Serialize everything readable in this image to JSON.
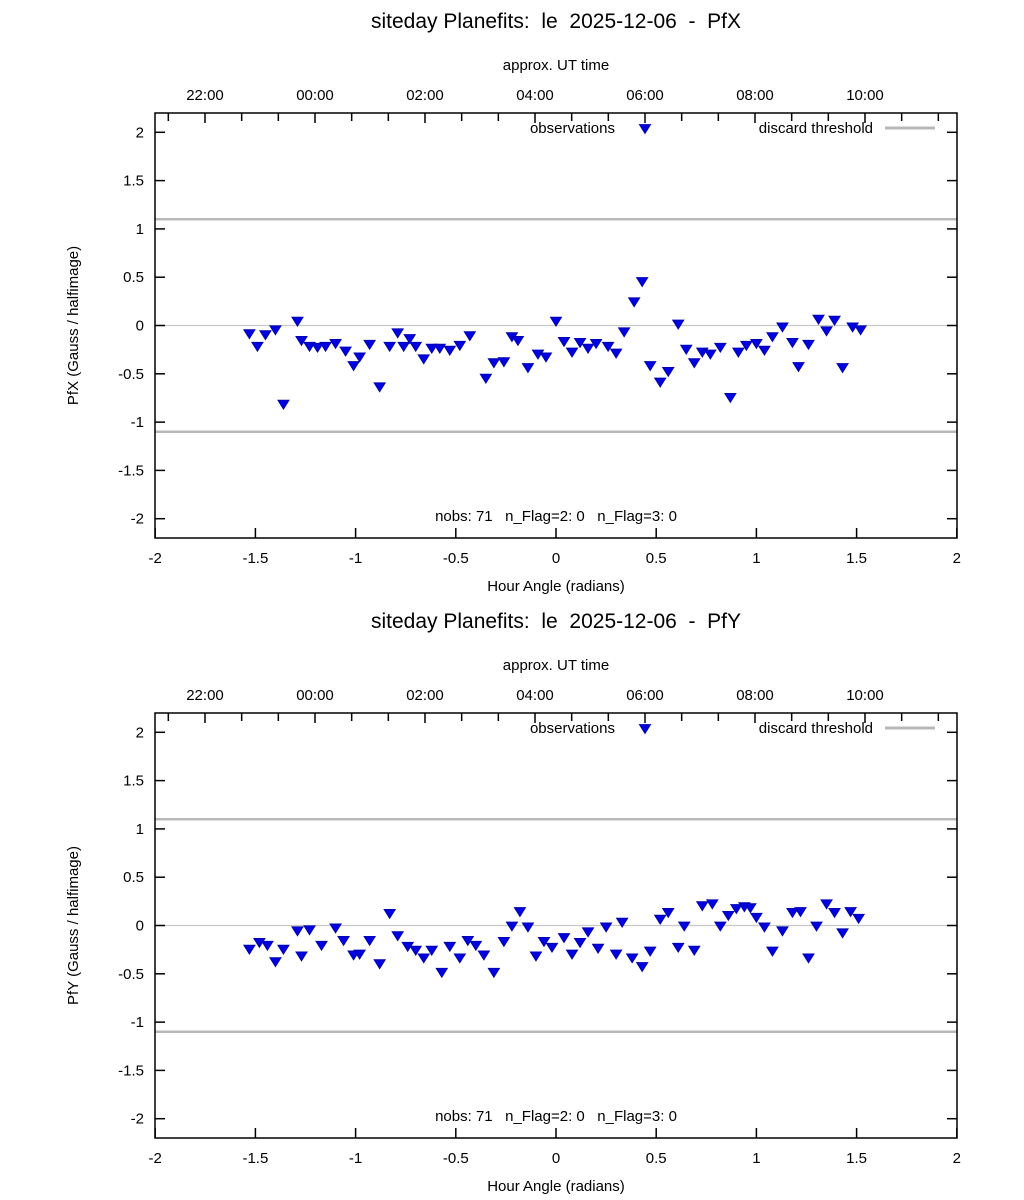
{
  "page": {
    "background": "#ffffff"
  },
  "colors": {
    "marker_fill": "#0000e0",
    "marker_edge": "#0000b0",
    "discard_threshold_line": "#b9b9b9",
    "zero_line": "#c9c9c9",
    "axis": "#000000",
    "text": "#000000"
  },
  "chart_data": [
    {
      "type": "scatter",
      "title": "siteday Planefits:  le  2025-12-06  -  PfX",
      "top_axis_label": "approx. UT time",
      "top_axis_ticks": [
        "22:00",
        "00:00",
        "02:00",
        "04:00",
        "06:00",
        "08:00",
        "10:00"
      ],
      "xlabel": "Hour Angle (radians)",
      "ylabel": "PfX (Gauss / halfimage)",
      "xlim": [
        -2,
        2
      ],
      "ylim": [
        -2.2,
        2.2
      ],
      "x_ticks": [
        "-2",
        "-1.5",
        "-1",
        "-0.5",
        "0",
        "0.5",
        "1",
        "1.5",
        "2"
      ],
      "y_ticks": [
        "2",
        "1.5",
        "1",
        "0.5",
        "0",
        "-0.5",
        "-1",
        "-1.5",
        "-2"
      ],
      "grid": "zero line only",
      "legend_position": "top-right inside",
      "legend": [
        {
          "label": "observations",
          "symbol": "triangle-down"
        },
        {
          "label": "discard threshold",
          "symbol": "line"
        }
      ],
      "discard_threshold_values": [
        1.1,
        -1.1
      ],
      "annotation": "nobs: 71   n_Flag=2: 0   n_Flag=3: 0",
      "series": [
        {
          "name": "observations",
          "marker": "triangle-down",
          "color": "#0000e0",
          "points": [
            [
              -1.53,
              -0.09
            ],
            [
              -1.49,
              -0.22
            ],
            [
              -1.45,
              -0.1
            ],
            [
              -1.4,
              -0.05
            ],
            [
              -1.36,
              -0.82
            ],
            [
              -1.29,
              0.04
            ],
            [
              -1.27,
              -0.16
            ],
            [
              -1.23,
              -0.22
            ],
            [
              -1.19,
              -0.23
            ],
            [
              -1.15,
              -0.22
            ],
            [
              -1.1,
              -0.19
            ],
            [
              -1.05,
              -0.27
            ],
            [
              -1.01,
              -0.42
            ],
            [
              -0.98,
              -0.33
            ],
            [
              -0.93,
              -0.2
            ],
            [
              -0.88,
              -0.64
            ],
            [
              -0.83,
              -0.22
            ],
            [
              -0.79,
              -0.08
            ],
            [
              -0.76,
              -0.22
            ],
            [
              -0.73,
              -0.14
            ],
            [
              -0.7,
              -0.22
            ],
            [
              -0.66,
              -0.35
            ],
            [
              -0.62,
              -0.24
            ],
            [
              -0.58,
              -0.24
            ],
            [
              -0.53,
              -0.26
            ],
            [
              -0.48,
              -0.21
            ],
            [
              -0.43,
              -0.11
            ],
            [
              -0.35,
              -0.55
            ],
            [
              -0.31,
              -0.39
            ],
            [
              -0.26,
              -0.38
            ],
            [
              -0.22,
              -0.12
            ],
            [
              -0.19,
              -0.16
            ],
            [
              -0.14,
              -0.44
            ],
            [
              -0.09,
              -0.3
            ],
            [
              -0.05,
              -0.33
            ],
            [
              0.0,
              0.04
            ],
            [
              0.04,
              -0.17
            ],
            [
              0.08,
              -0.28
            ],
            [
              0.12,
              -0.18
            ],
            [
              0.16,
              -0.24
            ],
            [
              0.2,
              -0.19
            ],
            [
              0.26,
              -0.22
            ],
            [
              0.3,
              -0.29
            ],
            [
              0.34,
              -0.07
            ],
            [
              0.39,
              0.24
            ],
            [
              0.43,
              0.45
            ],
            [
              0.47,
              -0.42
            ],
            [
              0.52,
              -0.59
            ],
            [
              0.56,
              -0.48
            ],
            [
              0.61,
              0.01
            ],
            [
              0.65,
              -0.25
            ],
            [
              0.69,
              -0.39
            ],
            [
              0.73,
              -0.28
            ],
            [
              0.77,
              -0.3
            ],
            [
              0.82,
              -0.23
            ],
            [
              0.87,
              -0.75
            ],
            [
              0.91,
              -0.28
            ],
            [
              0.95,
              -0.21
            ],
            [
              1.0,
              -0.19
            ],
            [
              1.04,
              -0.26
            ],
            [
              1.08,
              -0.12
            ],
            [
              1.13,
              -0.02
            ],
            [
              1.18,
              -0.18
            ],
            [
              1.21,
              -0.43
            ],
            [
              1.26,
              -0.2
            ],
            [
              1.31,
              0.06
            ],
            [
              1.35,
              -0.06
            ],
            [
              1.39,
              0.05
            ],
            [
              1.43,
              -0.44
            ],
            [
              1.48,
              -0.02
            ],
            [
              1.52,
              -0.05
            ]
          ]
        }
      ]
    },
    {
      "type": "scatter",
      "title": "siteday Planefits:  le  2025-12-06  -  PfY",
      "top_axis_label": "approx. UT time",
      "top_axis_ticks": [
        "22:00",
        "00:00",
        "02:00",
        "04:00",
        "06:00",
        "08:00",
        "10:00"
      ],
      "xlabel": "Hour Angle (radians)",
      "ylabel": "PfY (Gauss / halfimage)",
      "xlim": [
        -2,
        2
      ],
      "ylim": [
        -2.2,
        2.2
      ],
      "x_ticks": [
        "-2",
        "-1.5",
        "-1",
        "-0.5",
        "0",
        "0.5",
        "1",
        "1.5",
        "2"
      ],
      "y_ticks": [
        "2",
        "1.5",
        "1",
        "0.5",
        "0",
        "-0.5",
        "-1",
        "-1.5",
        "-2"
      ],
      "grid": "zero line only",
      "legend_position": "top-right inside",
      "legend": [
        {
          "label": "observations",
          "symbol": "triangle-down"
        },
        {
          "label": "discard threshold",
          "symbol": "line"
        }
      ],
      "discard_threshold_values": [
        1.1,
        -1.1
      ],
      "annotation": "nobs: 71   n_Flag=2: 0   n_Flag=3: 0",
      "series": [
        {
          "name": "observations",
          "marker": "triangle-down",
          "color": "#0000e0",
          "points": [
            [
              -1.53,
              -0.25
            ],
            [
              -1.48,
              -0.18
            ],
            [
              -1.44,
              -0.21
            ],
            [
              -1.4,
              -0.38
            ],
            [
              -1.36,
              -0.25
            ],
            [
              -1.29,
              -0.06
            ],
            [
              -1.27,
              -0.32
            ],
            [
              -1.23,
              -0.05
            ],
            [
              -1.17,
              -0.21
            ],
            [
              -1.1,
              -0.03
            ],
            [
              -1.06,
              -0.16
            ],
            [
              -1.01,
              -0.31
            ],
            [
              -0.98,
              -0.3
            ],
            [
              -0.93,
              -0.16
            ],
            [
              -0.88,
              -0.4
            ],
            [
              -0.83,
              0.12
            ],
            [
              -0.79,
              -0.11
            ],
            [
              -0.74,
              -0.22
            ],
            [
              -0.7,
              -0.26
            ],
            [
              -0.66,
              -0.34
            ],
            [
              -0.62,
              -0.26
            ],
            [
              -0.57,
              -0.49
            ],
            [
              -0.53,
              -0.22
            ],
            [
              -0.48,
              -0.34
            ],
            [
              -0.44,
              -0.16
            ],
            [
              -0.4,
              -0.21
            ],
            [
              -0.36,
              -0.31
            ],
            [
              -0.31,
              -0.49
            ],
            [
              -0.26,
              -0.17
            ],
            [
              -0.22,
              -0.01
            ],
            [
              -0.18,
              0.14
            ],
            [
              -0.14,
              -0.02
            ],
            [
              -0.1,
              -0.32
            ],
            [
              -0.06,
              -0.17
            ],
            [
              -0.02,
              -0.23
            ],
            [
              0.04,
              -0.13
            ],
            [
              0.08,
              -0.3
            ],
            [
              0.12,
              -0.18
            ],
            [
              0.16,
              -0.07
            ],
            [
              0.21,
              -0.24
            ],
            [
              0.25,
              -0.02
            ],
            [
              0.3,
              -0.3
            ],
            [
              0.33,
              0.03
            ],
            [
              0.38,
              -0.34
            ],
            [
              0.43,
              -0.43
            ],
            [
              0.47,
              -0.27
            ],
            [
              0.52,
              0.06
            ],
            [
              0.56,
              0.13
            ],
            [
              0.61,
              -0.23
            ],
            [
              0.64,
              -0.01
            ],
            [
              0.69,
              -0.26
            ],
            [
              0.73,
              0.2
            ],
            [
              0.78,
              0.22
            ],
            [
              0.82,
              -0.01
            ],
            [
              0.86,
              0.1
            ],
            [
              0.9,
              0.17
            ],
            [
              0.94,
              0.19
            ],
            [
              0.97,
              0.18
            ],
            [
              1.0,
              0.08
            ],
            [
              1.04,
              -0.02
            ],
            [
              1.08,
              -0.27
            ],
            [
              1.13,
              -0.06
            ],
            [
              1.18,
              0.13
            ],
            [
              1.22,
              0.14
            ],
            [
              1.26,
              -0.34
            ],
            [
              1.3,
              -0.01
            ],
            [
              1.35,
              0.22
            ],
            [
              1.39,
              0.13
            ],
            [
              1.43,
              -0.08
            ],
            [
              1.47,
              0.14
            ],
            [
              1.51,
              0.07
            ]
          ]
        }
      ]
    }
  ]
}
